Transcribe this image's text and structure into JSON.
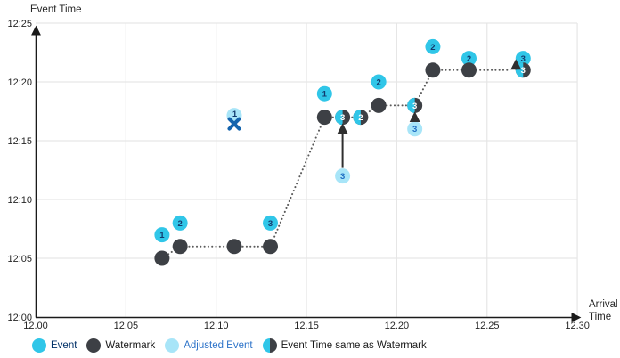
{
  "colors": {
    "event": "#30C6E8",
    "watermark": "#3D4045",
    "adjusted": "#A8E5F8",
    "event_number": "#123A6D",
    "adjusted_number": "#1F6FC4",
    "half_number": "#FFFFFF",
    "dropped_x": "#1464AE",
    "axis": "#1A1A1A",
    "grid": "#E6E6E6",
    "dotted_line": "#5A5A5A",
    "arrow": "#2F2F2F",
    "tick_text": "#262626",
    "legend_event_text": "#003067",
    "legend_adjusted_text": "#2E74C9",
    "legend_dark_text": "#1A1A1A"
  },
  "chart_data": {
    "type": "scatter",
    "title": "",
    "ylabel": "Event Time",
    "xlabel": "Arrival Time",
    "xlabel_lines": [
      "Arrival",
      "Time"
    ],
    "x_ticks": [
      "12.00",
      "12.05",
      "12.10",
      "12.15",
      "12.20",
      "12.25",
      "12.30"
    ],
    "y_ticks": [
      "12:00",
      "12:05",
      "12:10",
      "12:15",
      "12:20",
      "12:25"
    ],
    "xlim": [
      12.0,
      12.3
    ],
    "ylim": [
      "12:00",
      "12:25"
    ],
    "grid": true,
    "series": [
      {
        "name": "Event",
        "marker": "circle",
        "points": [
          {
            "label": "1",
            "arrival": 12.07,
            "event_time": "12:07"
          },
          {
            "label": "2",
            "arrival": 12.08,
            "event_time": "12:08"
          },
          {
            "label": "3",
            "arrival": 12.13,
            "event_time": "12:08"
          },
          {
            "label": "1",
            "arrival": 12.16,
            "event_time": "12:19"
          },
          {
            "label": "2",
            "arrival": 12.19,
            "event_time": "12:20"
          },
          {
            "label": "2",
            "arrival": 12.22,
            "event_time": "12:23"
          },
          {
            "label": "2",
            "arrival": 12.24,
            "event_time": "12:22"
          },
          {
            "label": "3",
            "arrival": 12.27,
            "event_time": "12:22"
          }
        ]
      },
      {
        "name": "Watermark",
        "marker": "circle",
        "points": [
          {
            "arrival": 12.07,
            "event_time": "12:05"
          },
          {
            "arrival": 12.08,
            "event_time": "12:06"
          },
          {
            "arrival": 12.11,
            "event_time": "12:06"
          },
          {
            "arrival": 12.13,
            "event_time": "12:06"
          },
          {
            "arrival": 12.16,
            "event_time": "12:17"
          },
          {
            "arrival": 12.19,
            "event_time": "12:18"
          },
          {
            "arrival": 12.22,
            "event_time": "12:21"
          },
          {
            "arrival": 12.24,
            "event_time": "12:21"
          }
        ]
      },
      {
        "name": "Adjusted Event",
        "marker": "circle",
        "points": [
          {
            "label": "3",
            "arrival": 12.17,
            "event_time": "12:12"
          },
          {
            "label": "3",
            "arrival": 12.21,
            "event_time": "12:16"
          }
        ]
      },
      {
        "name": "Event Time same as Watermark",
        "marker": "half-circle",
        "points": [
          {
            "label": "3",
            "arrival": 12.17,
            "event_time": "12:17"
          },
          {
            "label": "2",
            "arrival": 12.18,
            "event_time": "12:17"
          },
          {
            "label": "3",
            "arrival": 12.21,
            "event_time": "12:18"
          },
          {
            "label": "3",
            "arrival": 12.27,
            "event_time": "12:21"
          }
        ]
      }
    ],
    "dropped_event": {
      "label": "1",
      "arrival": 12.11,
      "event_time": "12:17",
      "marker": "x"
    },
    "watermark_line": {
      "style": "dotted",
      "points": [
        [
          12.07,
          "12:05"
        ],
        [
          12.08,
          "12:06"
        ],
        [
          12.13,
          "12:06"
        ],
        [
          12.16,
          "12:17"
        ],
        [
          12.18,
          "12:17"
        ],
        [
          12.19,
          "12:18"
        ],
        [
          12.21,
          "12:18"
        ],
        [
          12.22,
          "12:21"
        ],
        [
          12.263,
          "12:21"
        ]
      ]
    },
    "adjustment_arrows": [
      {
        "x": 12.17,
        "from": "12:12",
        "to": "12:17"
      },
      {
        "x": 12.21,
        "from": "12:16",
        "to": "12:18"
      },
      {
        "x": 12.266,
        "from": "12:21",
        "to": "12:22",
        "floating": true
      }
    ]
  },
  "legend": {
    "items": [
      {
        "label": "Event",
        "glyph": "event"
      },
      {
        "label": "Watermark",
        "glyph": "watermark"
      },
      {
        "label": "Adjusted Event",
        "glyph": "adjusted"
      },
      {
        "label": "Event Time same as Watermark",
        "glyph": "half"
      }
    ]
  }
}
